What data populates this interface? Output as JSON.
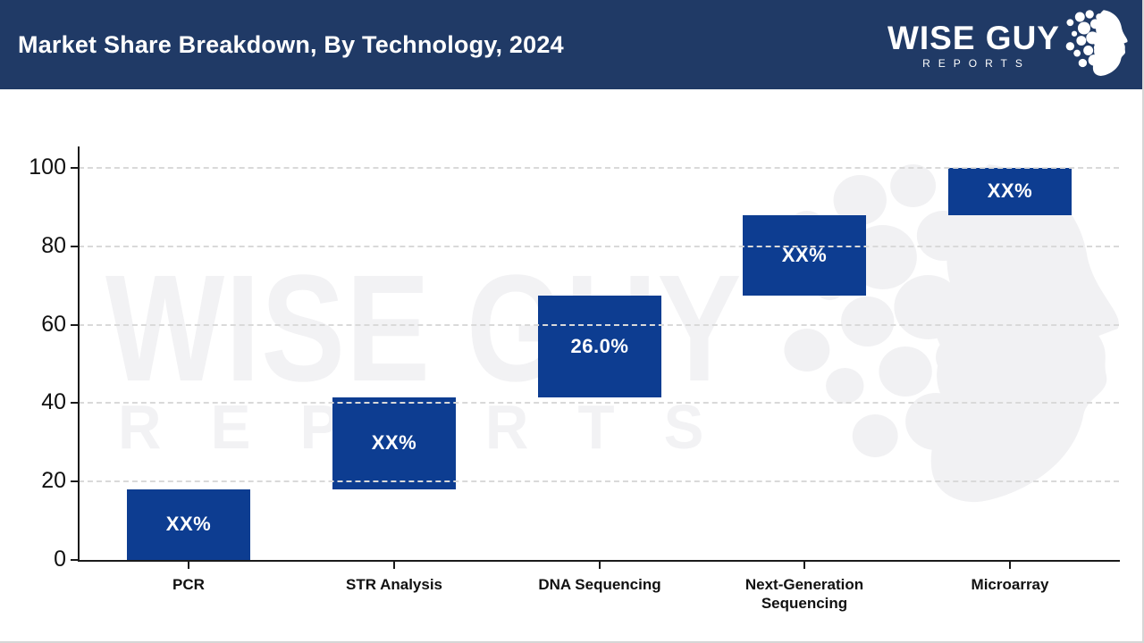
{
  "header": {
    "title": "Market Share Breakdown, By Technology, 2024",
    "logo": {
      "line1": "WISE GUY",
      "line2": "REPORTS"
    }
  },
  "watermark": {
    "line1": "WISE GUY",
    "line2": "REPORTS"
  },
  "colors": {
    "header_bg": "#203a66",
    "bar": "#0d3d91",
    "bar_label": "#ffffff",
    "gridline": "#d9d9d9",
    "axis": "#1a1a1a",
    "watermark": "#f2f2f4"
  },
  "chart_data": {
    "type": "bar",
    "subtype": "waterfall-floating-segments",
    "title": "Market Share Breakdown, By Technology, 2024",
    "xlabel": "",
    "ylabel": "",
    "ylim": [
      0,
      100
    ],
    "yticks": [
      0,
      20,
      40,
      60,
      80,
      100
    ],
    "grid": "horizontal-dashed",
    "legend": "none",
    "categories": [
      "PCR",
      "STR Analysis",
      "DNA Sequencing",
      "Next-Generation Sequencing",
      "Microarray"
    ],
    "series": [
      {
        "name": "Market Share (%)",
        "values": [
          18,
          23.5,
          26.0,
          20.5,
          12.0
        ],
        "segments": [
          {
            "start": 0,
            "end": 18
          },
          {
            "start": 18,
            "end": 41.5
          },
          {
            "start": 41.5,
            "end": 67.5
          },
          {
            "start": 67.5,
            "end": 88
          },
          {
            "start": 88,
            "end": 100
          }
        ]
      }
    ],
    "bar_labels": [
      "XX%",
      "XX%",
      "26.0%",
      "XX%",
      "XX%"
    ]
  }
}
